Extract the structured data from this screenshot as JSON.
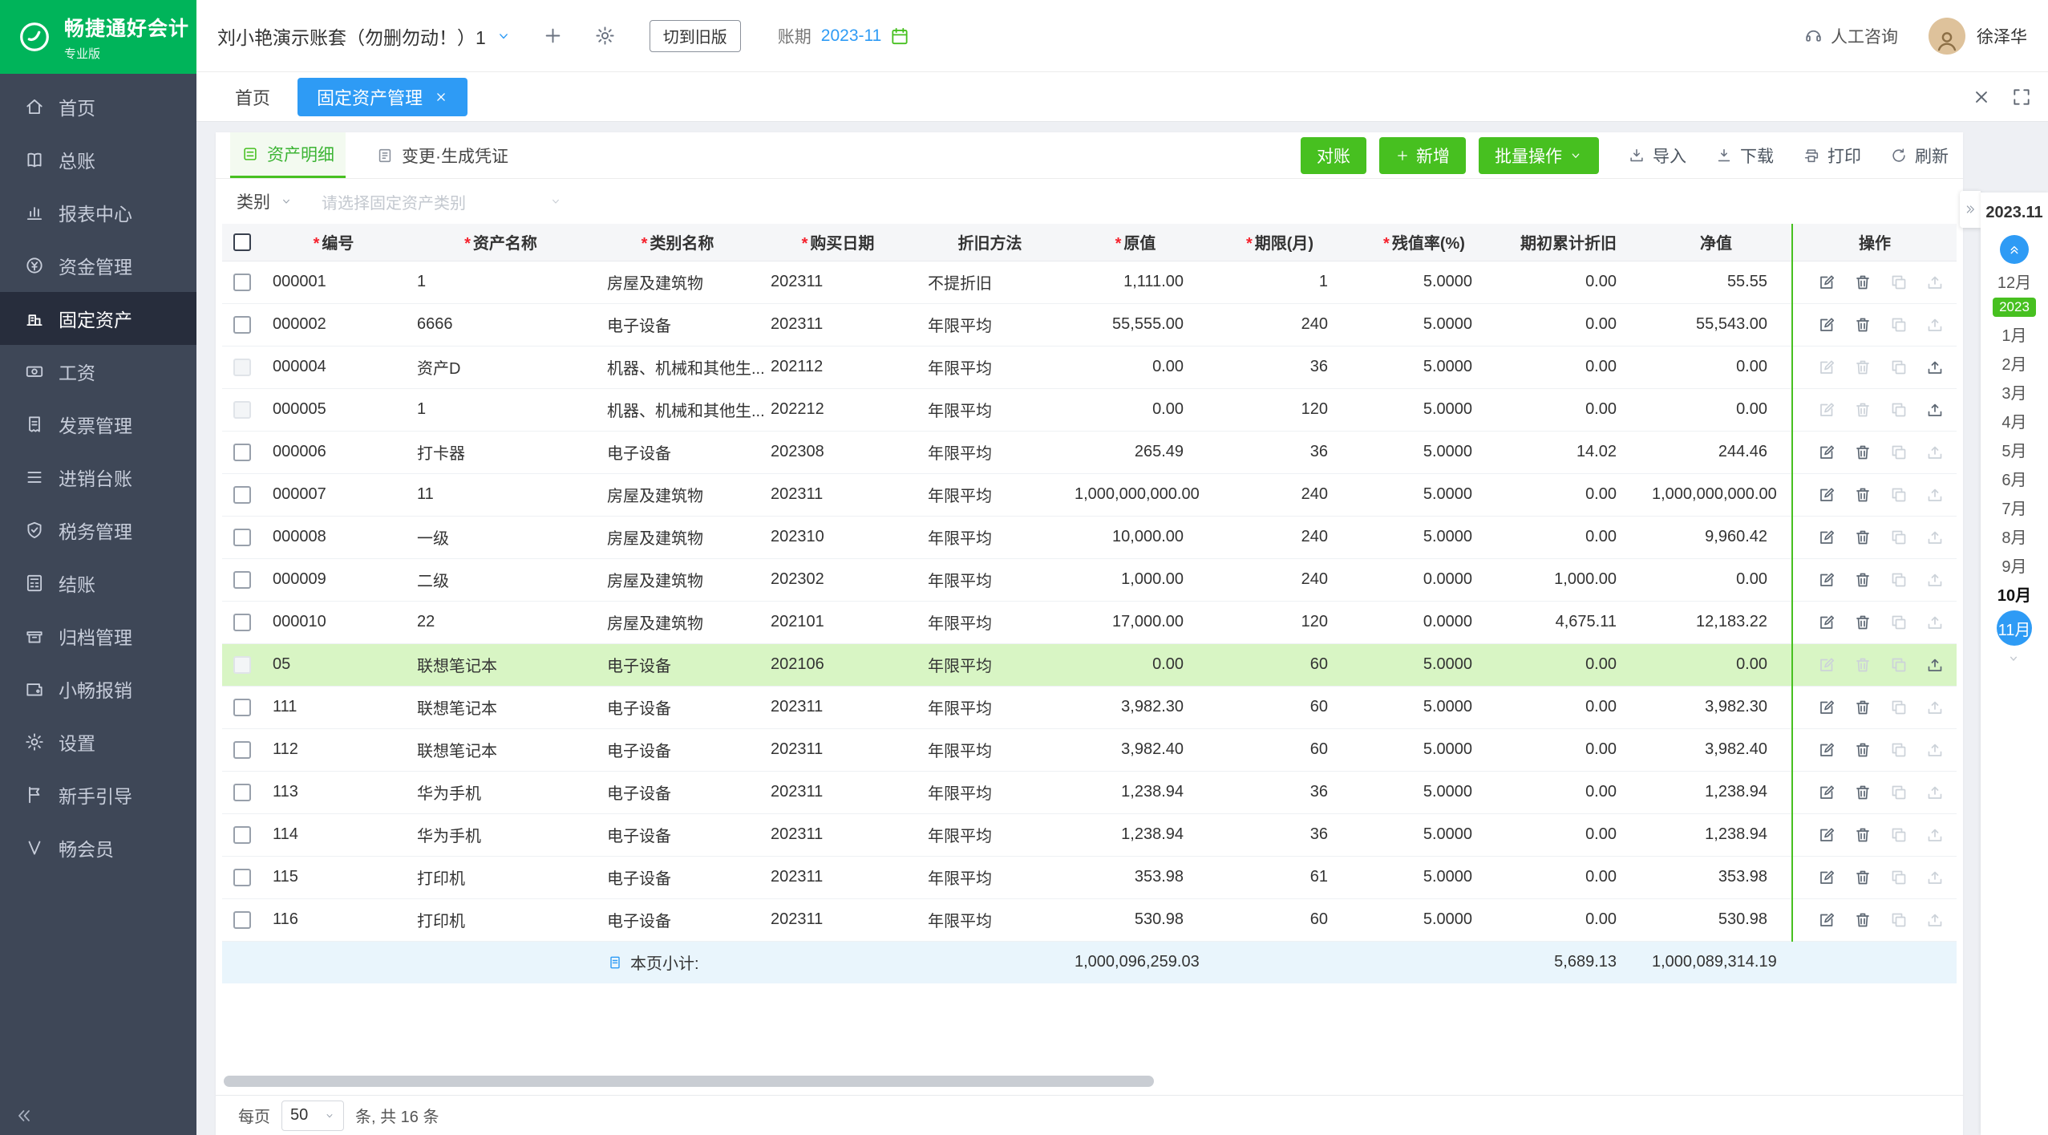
{
  "logo": {
    "title": "畅捷通好会计",
    "subtitle": "专业版"
  },
  "topbar": {
    "account_name": "刘小艳演示账套（勿删勿动！）1",
    "switch_old": "切到旧版",
    "period_label": "账期",
    "period_value": "2023-11",
    "support": "人工咨询",
    "user": "徐泽华"
  },
  "sidebar": {
    "items": [
      {
        "id": "home",
        "label": "首页"
      },
      {
        "id": "ledger",
        "label": "总账"
      },
      {
        "id": "reports",
        "label": "报表中心"
      },
      {
        "id": "funds",
        "label": "资金管理"
      },
      {
        "id": "assets",
        "label": "固定资产",
        "active": true
      },
      {
        "id": "salary",
        "label": "工资"
      },
      {
        "id": "invoice",
        "label": "发票管理"
      },
      {
        "id": "trade",
        "label": "进销台账"
      },
      {
        "id": "tax",
        "label": "税务管理"
      },
      {
        "id": "closing",
        "label": "结账"
      },
      {
        "id": "archive",
        "label": "归档管理"
      },
      {
        "id": "expense",
        "label": "小畅报销"
      },
      {
        "id": "settings",
        "label": "设置"
      },
      {
        "id": "guide",
        "label": "新手引导"
      },
      {
        "id": "member",
        "label": "畅会员"
      }
    ]
  },
  "tabs": [
    {
      "label": "首页",
      "active": false,
      "closable": false
    },
    {
      "label": "固定资产管理",
      "active": true,
      "closable": true
    }
  ],
  "toolbar": {
    "subtabs": [
      {
        "label": "资产明细",
        "active": true
      },
      {
        "label": "变更·生成凭证",
        "active": false
      }
    ],
    "primary_buttons": [
      {
        "label": "对账"
      },
      {
        "label": "新增",
        "plus": true
      },
      {
        "label": "批量操作",
        "caret": true
      }
    ],
    "tool_buttons": [
      {
        "id": "import",
        "label": "导入"
      },
      {
        "id": "download",
        "label": "下载"
      },
      {
        "id": "print",
        "label": "打印"
      },
      {
        "id": "refresh",
        "label": "刷新"
      }
    ]
  },
  "filter": {
    "category_label": "类别",
    "category_placeholder": "请选择固定资产类别"
  },
  "table": {
    "headers": [
      {
        "label": "编号",
        "required": true
      },
      {
        "label": "资产名称",
        "required": true
      },
      {
        "label": "类别名称",
        "required": true
      },
      {
        "label": "购买日期",
        "required": true
      },
      {
        "label": "折旧方法",
        "required": false
      },
      {
        "label": "原值",
        "required": true
      },
      {
        "label": "期限(月)",
        "required": true
      },
      {
        "label": "残值率(%)",
        "required": true
      },
      {
        "label": "期初累计折旧",
        "required": false
      },
      {
        "label": "净值",
        "required": false
      },
      {
        "label": "操作",
        "required": false
      }
    ],
    "rows": [
      {
        "code": "000001",
        "name": "1",
        "category": "房屋及建筑物",
        "date": "202311",
        "method": "不提折旧",
        "cost": "1,111.00",
        "months": "1",
        "residual": "5.0000",
        "accum": "0.00",
        "net": "55.55"
      },
      {
        "code": "000002",
        "name": "6666",
        "category": "电子设备",
        "date": "202311",
        "method": "年限平均",
        "cost": "55,555.00",
        "months": "240",
        "residual": "5.0000",
        "accum": "0.00",
        "net": "55,543.00"
      },
      {
        "code": "000004",
        "name": "资产D",
        "category": "机器、机械和其他生...",
        "date": "202112",
        "method": "年限平均",
        "cost": "0.00",
        "months": "36",
        "residual": "5.0000",
        "accum": "0.00",
        "net": "0.00",
        "disabled": true
      },
      {
        "code": "000005",
        "name": "1",
        "category": "机器、机械和其他生...",
        "date": "202212",
        "method": "年限平均",
        "cost": "0.00",
        "months": "120",
        "residual": "5.0000",
        "accum": "0.00",
        "net": "0.00",
        "disabled": true
      },
      {
        "code": "000006",
        "name": "打卡器",
        "category": "电子设备",
        "date": "202308",
        "method": "年限平均",
        "cost": "265.49",
        "months": "36",
        "residual": "5.0000",
        "accum": "14.02",
        "net": "244.46"
      },
      {
        "code": "000007",
        "name": "11",
        "category": "房屋及建筑物",
        "date": "202311",
        "method": "年限平均",
        "cost": "1,000,000,000.00",
        "months": "240",
        "residual": "5.0000",
        "accum": "0.00",
        "net": "1,000,000,000.00"
      },
      {
        "code": "000008",
        "name": "一级",
        "category": "房屋及建筑物",
        "date": "202310",
        "method": "年限平均",
        "cost": "10,000.00",
        "months": "240",
        "residual": "5.0000",
        "accum": "0.00",
        "net": "9,960.42"
      },
      {
        "code": "000009",
        "name": "二级",
        "category": "房屋及建筑物",
        "date": "202302",
        "method": "年限平均",
        "cost": "1,000.00",
        "months": "240",
        "residual": "0.0000",
        "accum": "1,000.00",
        "net": "0.00"
      },
      {
        "code": "000010",
        "name": "22",
        "category": "房屋及建筑物",
        "date": "202101",
        "method": "年限平均",
        "cost": "17,000.00",
        "months": "120",
        "residual": "0.0000",
        "accum": "4,675.11",
        "net": "12,183.22"
      },
      {
        "code": "05",
        "name": "联想笔记本",
        "category": "电子设备",
        "date": "202106",
        "method": "年限平均",
        "cost": "0.00",
        "months": "60",
        "residual": "5.0000",
        "accum": "0.00",
        "net": "0.00",
        "disabled": true,
        "highlight": true
      },
      {
        "code": "111",
        "name": "联想笔记本",
        "category": "电子设备",
        "date": "202311",
        "method": "年限平均",
        "cost": "3,982.30",
        "months": "60",
        "residual": "5.0000",
        "accum": "0.00",
        "net": "3,982.30"
      },
      {
        "code": "112",
        "name": "联想笔记本",
        "category": "电子设备",
        "date": "202311",
        "method": "年限平均",
        "cost": "3,982.40",
        "months": "60",
        "residual": "5.0000",
        "accum": "0.00",
        "net": "3,982.40"
      },
      {
        "code": "113",
        "name": "华为手机",
        "category": "电子设备",
        "date": "202311",
        "method": "年限平均",
        "cost": "1,238.94",
        "months": "36",
        "residual": "5.0000",
        "accum": "0.00",
        "net": "1,238.94"
      },
      {
        "code": "114",
        "name": "华为手机",
        "category": "电子设备",
        "date": "202311",
        "method": "年限平均",
        "cost": "1,238.94",
        "months": "36",
        "residual": "5.0000",
        "accum": "0.00",
        "net": "1,238.94"
      },
      {
        "code": "115",
        "name": "打印机",
        "category": "电子设备",
        "date": "202311",
        "method": "年限平均",
        "cost": "353.98",
        "months": "61",
        "residual": "5.0000",
        "accum": "0.00",
        "net": "353.98"
      },
      {
        "code": "116",
        "name": "打印机",
        "category": "电子设备",
        "date": "202311",
        "method": "年限平均",
        "cost": "530.98",
        "months": "60",
        "residual": "5.0000",
        "accum": "0.00",
        "net": "530.98"
      }
    ],
    "subtotal": {
      "label": "本页小计:",
      "cost": "1,000,096,259.03",
      "accum": "5,689.13",
      "net": "1,000,089,314.19"
    }
  },
  "pagination": {
    "per_page_label": "每页",
    "per_page_value": "50",
    "total_text": "条, 共 16 条"
  },
  "calendar": {
    "title": "2023.11",
    "items": [
      {
        "type": "up"
      },
      {
        "type": "month",
        "label": "12月"
      },
      {
        "type": "year",
        "label": "2023"
      },
      {
        "type": "month",
        "label": "1月"
      },
      {
        "type": "month",
        "label": "2月"
      },
      {
        "type": "month",
        "label": "3月"
      },
      {
        "type": "month",
        "label": "4月"
      },
      {
        "type": "month",
        "label": "5月"
      },
      {
        "type": "month",
        "label": "6月"
      },
      {
        "type": "month",
        "label": "7月"
      },
      {
        "type": "month",
        "label": "8月"
      },
      {
        "type": "month",
        "label": "9月"
      },
      {
        "type": "month",
        "label": "10月",
        "bold": true
      },
      {
        "type": "month",
        "label": "11月",
        "selected": true
      },
      {
        "type": "down"
      }
    ]
  },
  "colors": {
    "accent_green": "#47c020",
    "tab_blue": "#2e9bf5",
    "highlight_row": "#d8f5c4",
    "subtotal_bg": "#e9f5fc",
    "required_red": "#f5222d",
    "sidebar_bg": "#3e4757",
    "logo_green": "#00b45a"
  }
}
